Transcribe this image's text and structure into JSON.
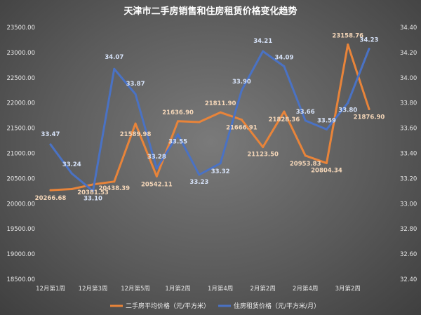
{
  "chart_data": {
    "type": "line",
    "title": "天津市二手房销售和住房租赁价格变化趋势",
    "categories": [
      "12月第1周",
      "",
      "12月第3周",
      "",
      "12月第5周",
      "",
      "1月第2周",
      "",
      "1月第4周",
      "",
      "2月第2周",
      "",
      "2月第4周",
      "",
      "3月第2周",
      ""
    ],
    "x_tick_labels": [
      "12月第1周",
      "12月第3周",
      "12月第5周",
      "1月第2周",
      "1月第4周",
      "2月第2周",
      "2月第4周",
      "3月第2周"
    ],
    "series": [
      {
        "name": "二手房平均价格（元/平方米）",
        "axis": "left",
        "color": "#e8843a",
        "values": [
          20266.68,
          20290,
          20381.53,
          20438.39,
          21589.98,
          20542.11,
          21636.9,
          21620,
          21811.9,
          21666.91,
          21123.5,
          21828.36,
          20953.83,
          20804.34,
          23158.76,
          21876.9
        ],
        "labels": [
          "20266.68",
          null,
          "20381.53",
          "20438.39",
          "21589.98",
          "20542.11",
          "21636.90",
          null,
          "21811.90",
          "21666.91",
          "21123.50",
          "21828.36",
          "20953.83",
          "20804.34",
          "23158.76",
          "21876.90"
        ]
      },
      {
        "name": "住房租赁价格（元/平方米/月）",
        "axis": "right",
        "color": "#4a72c4",
        "values": [
          33.47,
          33.24,
          33.1,
          34.07,
          33.87,
          33.28,
          33.55,
          33.23,
          33.32,
          33.9,
          34.21,
          34.09,
          33.66,
          33.59,
          33.8,
          34.23
        ],
        "labels": [
          "33.47",
          "33.24",
          "33.10",
          "34.07",
          "33.87",
          "33.28",
          "33.55",
          "33.23",
          "33.32",
          "33.90",
          "34.21",
          "34.09",
          "33.66",
          "33.59",
          "33.80",
          "34.23"
        ]
      }
    ],
    "y_left": {
      "min": 18500,
      "max": 23500,
      "step": 500,
      "tick_labels": [
        "18500.00",
        "19000.00",
        "19500.00",
        "20000.00",
        "20500.00",
        "21000.00",
        "21500.00",
        "22000.00",
        "22500.00",
        "23000.00",
        "23500.00"
      ]
    },
    "y_right": {
      "min": 32.4,
      "max": 34.4,
      "step": 0.2,
      "tick_labels": [
        "32.40",
        "32.60",
        "32.80",
        "33.00",
        "33.20",
        "33.40",
        "33.60",
        "33.80",
        "34.00",
        "34.20",
        "34.40"
      ]
    },
    "grid": false,
    "legend_position": "bottom"
  }
}
